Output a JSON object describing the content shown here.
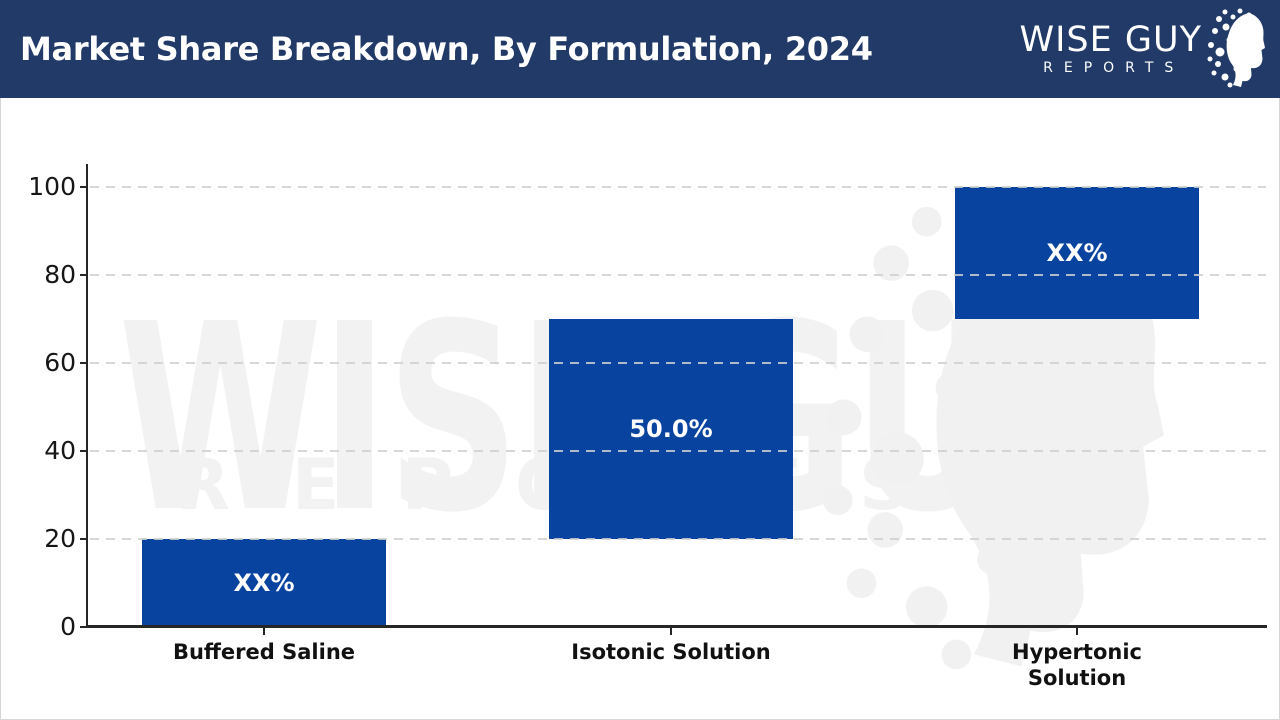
{
  "header": {
    "title": "Market Share Breakdown, By Formulation, 2024",
    "logo": {
      "brand_line1": "WISE GUY",
      "brand_line2": "REPORTS"
    }
  },
  "watermark": {
    "line1": "WISE GUY",
    "line2": "REPORTS"
  },
  "chart_data": {
    "type": "bar",
    "subtype": "waterfall-segments",
    "title": "Market Share Breakdown, By Formulation, 2024",
    "categories": [
      "Buffered Saline",
      "Isotonic Solution",
      "Hypertonic\nSolution"
    ],
    "segments": [
      {
        "category": "Buffered Saline",
        "start": 0,
        "end": 20,
        "label": "XX%"
      },
      {
        "category": "Isotonic Solution",
        "start": 20,
        "end": 70,
        "label": "50.0%"
      },
      {
        "category": "Hypertonic Solution",
        "start": 70,
        "end": 100,
        "label": "XX%"
      }
    ],
    "xlabel": "",
    "ylabel": "",
    "yticks": [
      0,
      20,
      40,
      60,
      80,
      100
    ],
    "ylim": [
      0,
      105
    ],
    "grid": "horizontal-dashed",
    "legend": "none",
    "bar_color": "#0843a0",
    "bar_label_color": "#ffffff"
  },
  "colors": {
    "header_bg": "#213a67",
    "bar": "#0843a0",
    "grid": "#d0d0d0",
    "axis": "#262626",
    "watermark": "#f2f2f2",
    "frame_border": "#d6d6d6"
  }
}
